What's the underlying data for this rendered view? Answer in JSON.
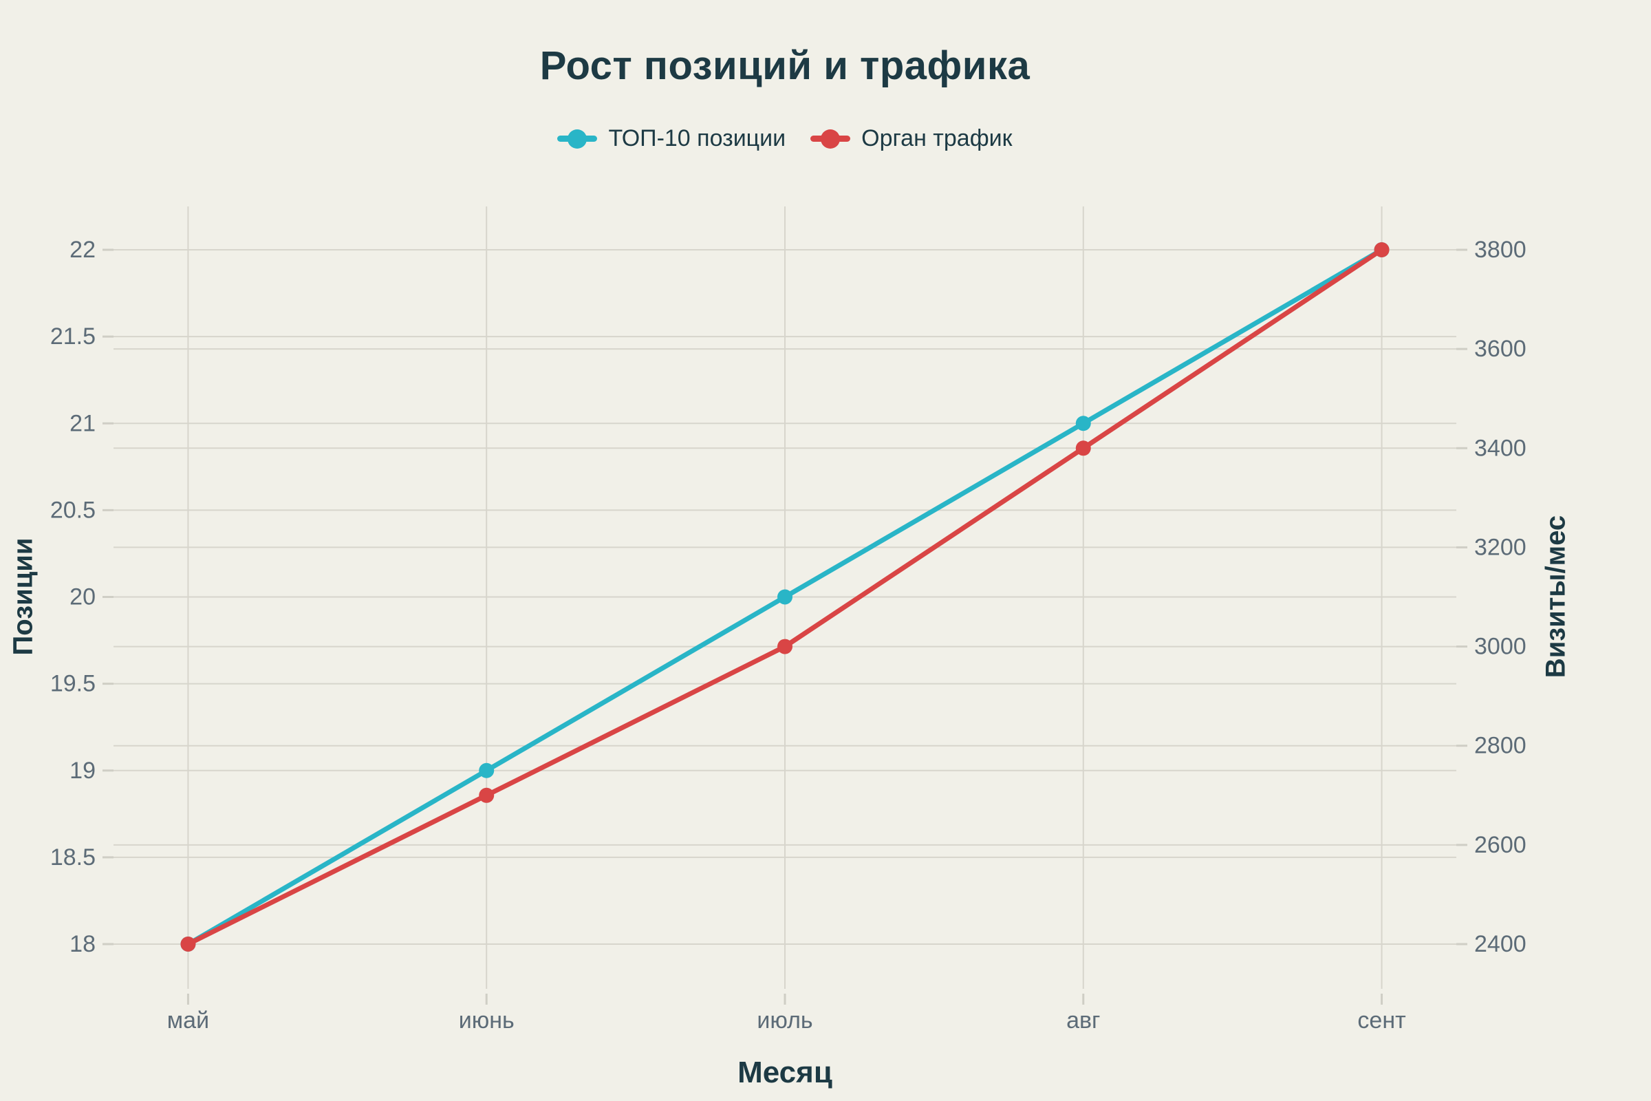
{
  "chart_data": {
    "type": "line",
    "title": "Рост позиций и трафика",
    "categories": [
      "май",
      "июнь",
      "июль",
      "авг",
      "сент"
    ],
    "xlabel": "Месяц",
    "y_left": {
      "label": "Позиции",
      "ticks": [
        "18",
        "18.5",
        "19",
        "19.5",
        "20",
        "20.5",
        "21",
        "21.5",
        "22"
      ],
      "range": [
        18,
        22
      ]
    },
    "y_right": {
      "label": "Визиты/мес",
      "ticks": [
        "2400",
        "2600",
        "2800",
        "3000",
        "3200",
        "3400",
        "3600",
        "3800"
      ],
      "range": [
        2400,
        3800
      ]
    },
    "series": [
      {
        "name": "ТОП-10 позиции",
        "yaxis": "left",
        "color": "#29b5c7",
        "values": [
          18,
          19,
          20,
          21,
          22
        ]
      },
      {
        "name": "Орган трафик",
        "yaxis": "right",
        "color": "#d94545",
        "values": [
          2400,
          2700,
          3000,
          3400,
          3800
        ]
      }
    ],
    "grid": true,
    "legend_position": "top-center",
    "colors": {
      "background": "#f1f0e8",
      "grid": "#d7d5cc",
      "tick_mark": "#cfcec5",
      "tick_label": "#5c6b77",
      "text": "#1d3a44"
    }
  }
}
